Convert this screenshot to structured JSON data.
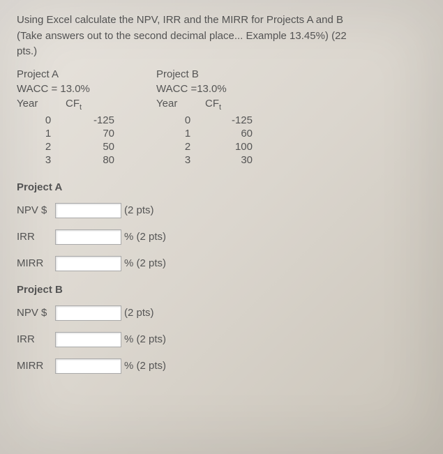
{
  "question": {
    "line1": "Using Excel calculate the NPV, IRR and the MIRR for Projects A and B",
    "line2": "(Take answers out to the second decimal place... Example 13.45%) (22",
    "line3": "pts.)"
  },
  "projectA": {
    "title": "Project A",
    "wacc": "WACC = 13.0%",
    "yearHeader": "Year",
    "cfHeader": "CF",
    "cfSub": "t",
    "rows": [
      {
        "year": "0",
        "cf": "-125"
      },
      {
        "year": "1",
        "cf": "70"
      },
      {
        "year": "2",
        "cf": "50"
      },
      {
        "year": "3",
        "cf": "80"
      }
    ]
  },
  "projectB": {
    "title": "Project B",
    "wacc": "WACC =13.0%",
    "yearHeader": "Year",
    "cfHeader": "CF",
    "cfSub": "t",
    "rows": [
      {
        "year": "0",
        "cf": "-125"
      },
      {
        "year": "1",
        "cf": "60"
      },
      {
        "year": "2",
        "cf": "100"
      },
      {
        "year": "3",
        "cf": "30"
      }
    ]
  },
  "answersA": {
    "title": "Project A",
    "npv": {
      "label": "NPV $",
      "suffix": "(2 pts)"
    },
    "irr": {
      "label": "IRR",
      "suffix": "% (2 pts)"
    },
    "mirr": {
      "label": "MIRR",
      "suffix": "% (2 pts)"
    }
  },
  "answersB": {
    "title": "Project B",
    "npv": {
      "label": "NPV $",
      "suffix": "(2 pts)"
    },
    "irr": {
      "label": "IRR",
      "suffix": "% (2 pts)"
    },
    "mirr": {
      "label": "MIRR",
      "suffix": "% (2 pts)"
    }
  },
  "colors": {
    "text": "#555555",
    "inputBorder": "#aaaaaa",
    "inputBg": "#ffffff"
  }
}
